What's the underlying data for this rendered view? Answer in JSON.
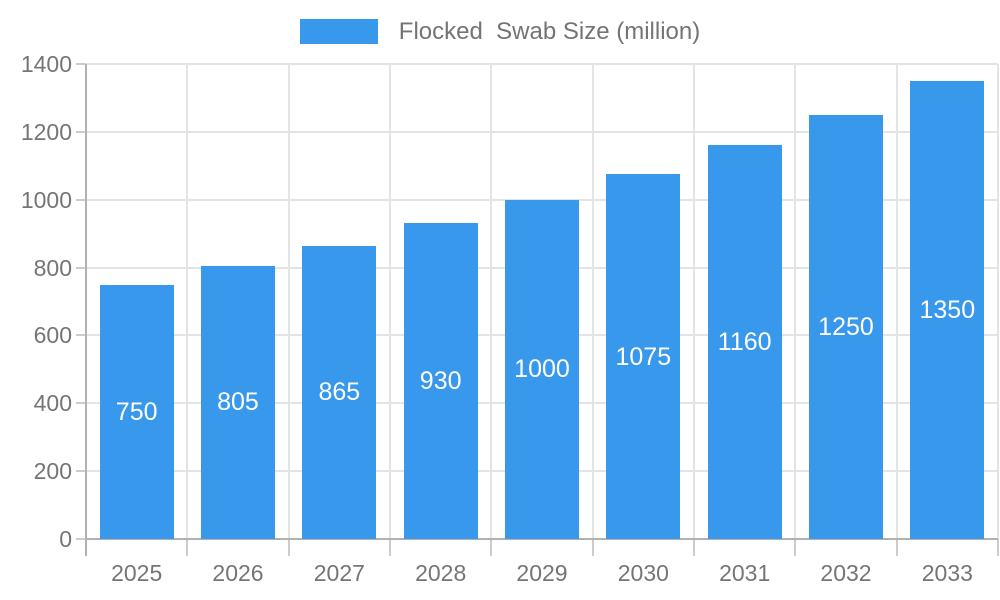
{
  "legend": {
    "label": "Flocked  Swab Size (million)"
  },
  "colors": {
    "bar": "#3898ec",
    "grid": "#e4e4e4",
    "axis": "#b1b1b1",
    "tick": "#cccccc",
    "axis_text": "#757575",
    "legend_text": "#747474",
    "value_label": "#ffffff",
    "background": "#ffffff"
  },
  "chart_data": {
    "type": "bar",
    "title": "",
    "legend_entries": [
      "Flocked  Swab Size (million)"
    ],
    "legend_position": "top",
    "categories": [
      "2025",
      "2026",
      "2027",
      "2028",
      "2029",
      "2030",
      "2031",
      "2032",
      "2033"
    ],
    "values": [
      750,
      805,
      865,
      930,
      1000,
      1075,
      1160,
      1250,
      1350
    ],
    "value_labels": [
      "750",
      "805",
      "865",
      "930",
      "1000",
      "1075",
      "1160",
      "1250",
      "1350"
    ],
    "xlabel": "",
    "ylabel": "",
    "ylim": [
      0,
      1400
    ],
    "ytick_step": 200,
    "ytick_labels": [
      "0",
      "200",
      "400",
      "600",
      "800",
      "1000",
      "1200",
      "1400"
    ],
    "grid": true
  }
}
